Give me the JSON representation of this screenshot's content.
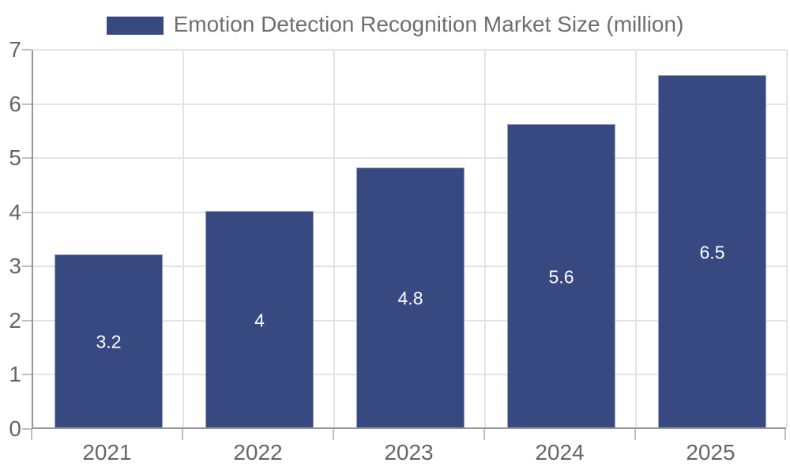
{
  "chart_data": {
    "type": "bar",
    "legend": "Emotion Detection Recognition Market Size (million)",
    "legend_position": "top-center",
    "categories": [
      "2021",
      "2022",
      "2023",
      "2024",
      "2025"
    ],
    "values": [
      3.2,
      4,
      4.8,
      5.6,
      6.5
    ],
    "value_labels": [
      "3.2",
      "4",
      "4.8",
      "5.6",
      "6.5"
    ],
    "xlabel": "",
    "ylabel": "",
    "ylim": [
      0,
      7
    ],
    "ytick_interval": 1,
    "ytick_labels": [
      "0",
      "1",
      "2",
      "3",
      "4",
      "5",
      "6",
      "7"
    ],
    "grid": true,
    "colors": {
      "bar": "#384982",
      "bar_label": "#ffffff",
      "axis_text": "#666666",
      "legend_text": "#6e6e6e"
    }
  }
}
